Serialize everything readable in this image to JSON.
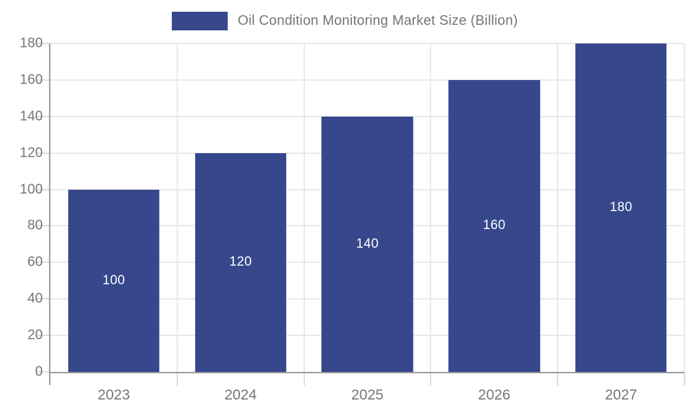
{
  "chart_data": {
    "type": "bar",
    "title": "Oil Condition Monitoring Market Size (Billion)",
    "legend": {
      "position": "top",
      "label": "Oil Condition Monitoring Market Size (Billion)"
    },
    "categories": [
      "2023",
      "2024",
      "2025",
      "2026",
      "2027"
    ],
    "values": [
      100,
      120,
      140,
      160,
      180
    ],
    "data_labels": [
      "100",
      "120",
      "140",
      "160",
      "180"
    ],
    "xlabel": "",
    "ylabel": "",
    "ylim": [
      0,
      180
    ],
    "ytick_step": 20,
    "ytick_labels": [
      "0",
      "20",
      "40",
      "60",
      "80",
      "100",
      "120",
      "140",
      "160",
      "180"
    ],
    "grid": true,
    "colors": {
      "bar": "#36478b",
      "bar_label": "#ffffff",
      "axis_line": "#9a9a9a",
      "gridline": "#e9e9e9",
      "tick": "#dcdce4",
      "text": "#757575",
      "background": "#ffffff"
    }
  }
}
